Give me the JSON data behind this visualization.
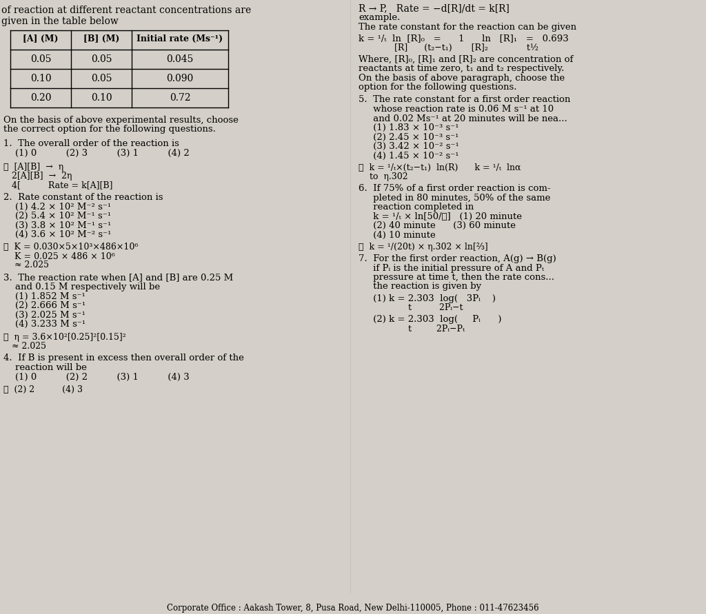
{
  "bg_color": "#d4cfc8",
  "table_headers": [
    "[A] (M)",
    "[B] (M)",
    "Initial rate (Ms⁻¹)"
  ],
  "table_data": [
    [
      "0.05",
      "0.05",
      "0.045"
    ],
    [
      "0.10",
      "0.05",
      "0.090"
    ],
    [
      "0.20",
      "0.10",
      "0.72"
    ]
  ],
  "footer": "Corporate Office : Aakash Tower, 8, Pusa Road, New Delhi-110005, Phone : 011-47623456"
}
